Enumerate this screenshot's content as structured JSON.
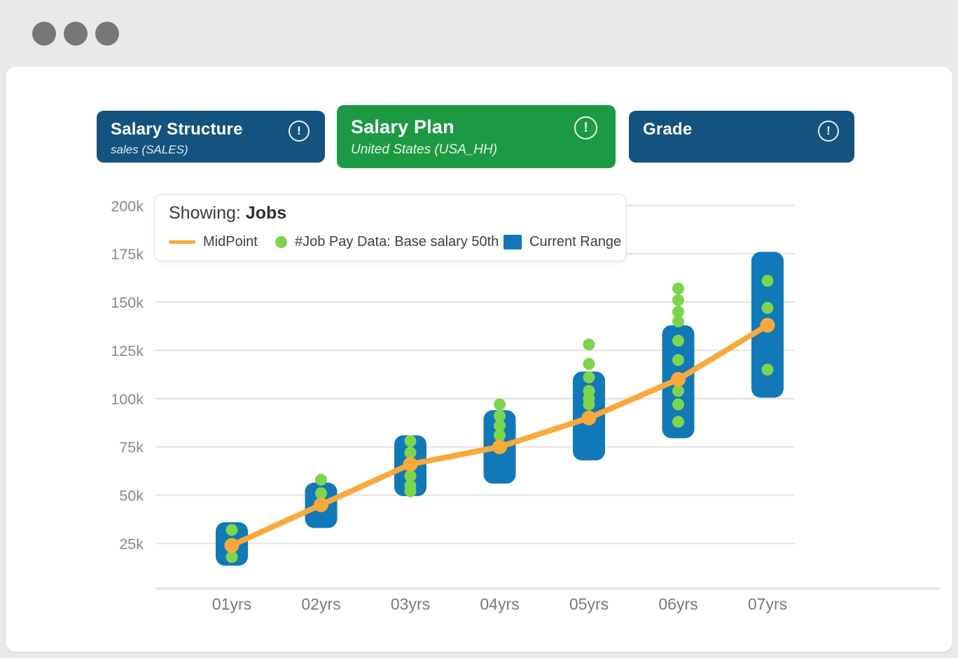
{
  "window": {
    "traffic_dots": [
      "dot-1",
      "dot-2",
      "dot-3"
    ]
  },
  "filters": [
    {
      "title": "Salary Structure",
      "subtitle": "sales (SALES)",
      "color": "#14537F"
    },
    {
      "title": "Salary Plan",
      "subtitle": "United States (USA_HH)",
      "color": "#1C9A43"
    },
    {
      "title": "Grade",
      "subtitle": "",
      "color": "#14537F"
    }
  ],
  "icons": {
    "alert_glyph": "!"
  },
  "legend": {
    "showing_label": "Showing:",
    "showing_value": "Jobs"
  },
  "chart_data": {
    "type": "composite",
    "title": "Showing: Jobs",
    "categories": [
      "01yrs",
      "02yrs",
      "03yrs",
      "04yrs",
      "05yrs",
      "06yrs",
      "07yrs"
    ],
    "unit": "USD thousands (k)",
    "ylim": [
      0,
      200
    ],
    "y_tick_values": [
      25,
      50,
      75,
      100,
      125,
      150,
      175,
      200
    ],
    "y_tick_labels": [
      "25k",
      "50k",
      "75k",
      "100k",
      "125k",
      "150k",
      "175k",
      "200k"
    ],
    "grid": true,
    "legend_position": "top-left",
    "axis_color": "#E7E7E7",
    "grid_color": "#E3E3E3",
    "series": [
      {
        "name": "Current Range",
        "type": "range-bar",
        "color": "#1179B7",
        "ranges": [
          [
            13.5,
            36
          ],
          [
            33,
            56.5
          ],
          [
            49.5,
            81
          ],
          [
            56,
            94
          ],
          [
            68,
            114
          ],
          [
            79.5,
            138
          ],
          [
            100.5,
            176
          ]
        ]
      },
      {
        "name": "MidPoint",
        "type": "line",
        "color": "#F9A93B",
        "values": [
          24,
          45,
          66,
          75,
          90,
          110,
          138
        ]
      },
      {
        "name": "#Job Pay Data: Base salary 50th",
        "type": "scatter",
        "color": "#7CD64C",
        "points": [
          [
            32,
            18
          ],
          [
            58,
            51
          ],
          [
            78,
            72,
            60,
            55,
            52
          ],
          [
            97,
            91,
            86,
            81
          ],
          [
            128,
            118,
            111,
            104,
            100,
            97
          ],
          [
            157,
            151,
            145,
            140,
            130,
            120,
            104,
            97,
            88
          ],
          [
            161,
            147,
            115
          ]
        ]
      }
    ]
  }
}
